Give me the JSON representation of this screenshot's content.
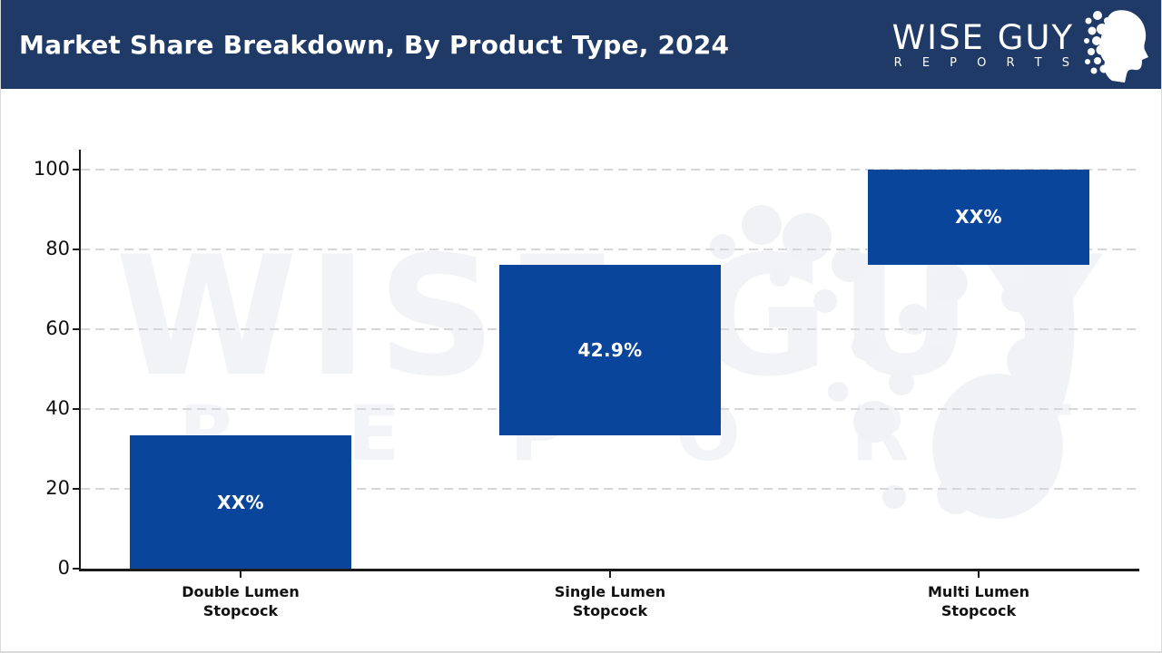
{
  "header": {
    "title": "Market Share Breakdown, By Product Type, 2024",
    "logo": {
      "line1": "WISE GUY",
      "line2": "R E P O R T S"
    }
  },
  "watermark": {
    "line1": "WISE GUY",
    "line2": "R E P O R T S"
  },
  "chart_data": {
    "type": "bar",
    "subtype": "floating-segment-waterfall",
    "title": "Market Share Breakdown, By Product Type, 2024",
    "categories": [
      "Double Lumen Stopcock",
      "Single Lumen Stopcock",
      "Multi Lumen Stopcock"
    ],
    "category_lines": [
      [
        "Double Lumen",
        "Stopcock"
      ],
      [
        "Single Lumen",
        "Stopcock"
      ],
      [
        "Multi Lumen",
        "Stopcock"
      ]
    ],
    "segments": [
      {
        "category": "Double Lumen Stopcock",
        "start": 0,
        "end": 33.3,
        "label": "XX%"
      },
      {
        "category": "Single Lumen Stopcock",
        "start": 33.3,
        "end": 76.2,
        "label": "42.9%"
      },
      {
        "category": "Multi Lumen Stopcock",
        "start": 76.2,
        "end": 100,
        "label": "XX%"
      }
    ],
    "ylim": [
      0,
      100
    ],
    "yticks": [
      0,
      20,
      40,
      60,
      80,
      100
    ],
    "grid": "horizontal-dashed",
    "legend": "none",
    "bar_color": "#0a459c",
    "bar_label_color": "#ffffff",
    "axis_color": "#1a1a1a",
    "grid_color": "#d7d7d7",
    "header_color": "#1f3a67",
    "watermark_color": "#f2f3f6"
  }
}
